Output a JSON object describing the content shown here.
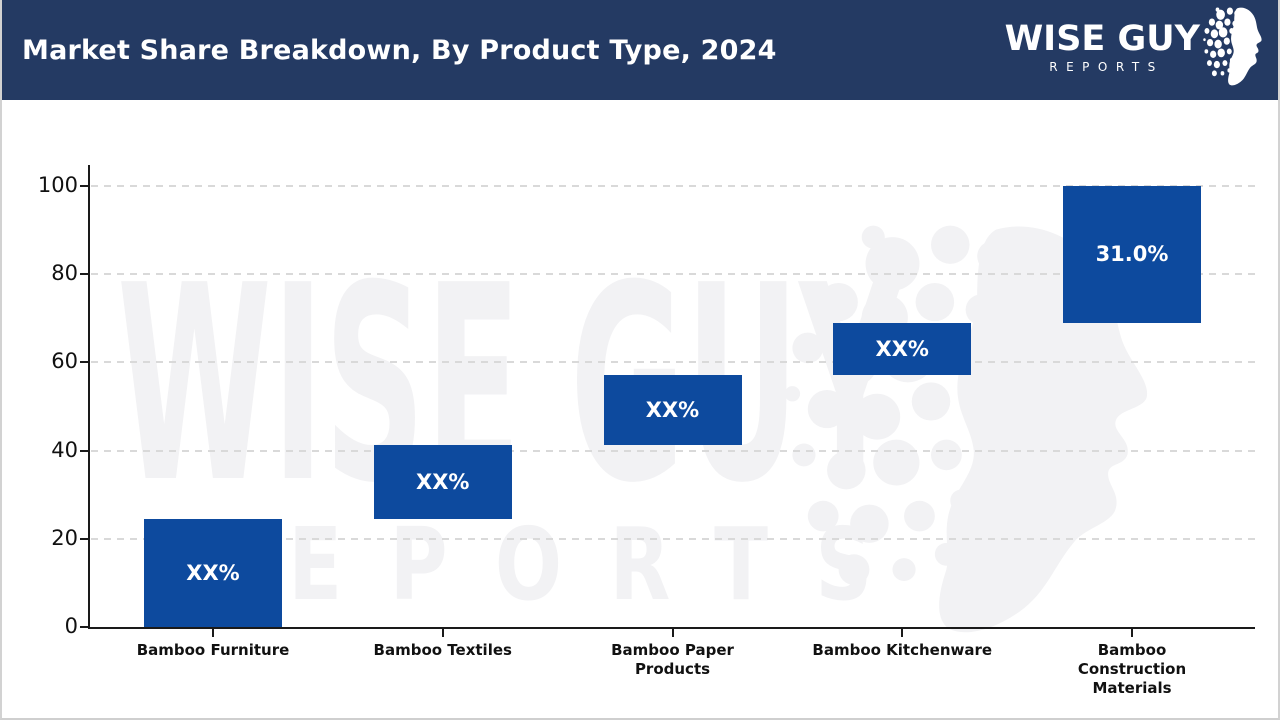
{
  "header": {
    "title": "Market Share Breakdown, By Product Type, 2024",
    "background_color": "#243a63",
    "logo": {
      "name": "WISE GUY",
      "tagline": "REPORTS",
      "face_icon": "dotted-head-profile"
    }
  },
  "watermark": {
    "name": "WISE GUY",
    "tagline": "REPORTS",
    "face_icon": "dotted-head-profile",
    "color": "#f2f2f4"
  },
  "chart_data": {
    "type": "bar",
    "subtype": "waterfall",
    "title": "Market Share Breakdown, By Product Type, 2024",
    "categories": [
      "Bamboo Furniture",
      "Bamboo Textiles",
      "Bamboo Paper\nProducts",
      "Bamboo Kitchenware",
      "Bamboo\nConstruction\nMaterials"
    ],
    "bars": [
      {
        "category": "Bamboo Furniture",
        "start": 0,
        "end": 24.5,
        "label": "XX%"
      },
      {
        "category": "Bamboo Textiles",
        "start": 24.5,
        "end": 41.3,
        "label": "XX%"
      },
      {
        "category": "Bamboo Paper Products",
        "start": 41.3,
        "end": 57.2,
        "label": "XX%"
      },
      {
        "category": "Bamboo Kitchenware",
        "start": 57.2,
        "end": 69.0,
        "label": "XX%"
      },
      {
        "category": "Bamboo Construction Materials",
        "start": 69.0,
        "end": 100.0,
        "label": "31.0%"
      }
    ],
    "yticks": [
      0,
      20,
      40,
      60,
      80,
      100
    ],
    "ylim": [
      0,
      105
    ],
    "xlabel": "",
    "ylabel": "",
    "grid": "horizontal-dashed",
    "legend": "none",
    "bar_color": "#0d4a9e",
    "bar_label_color": "#ffffff",
    "axis_color": "#1a1a1a",
    "gridline_color": "#d9d9d9"
  }
}
